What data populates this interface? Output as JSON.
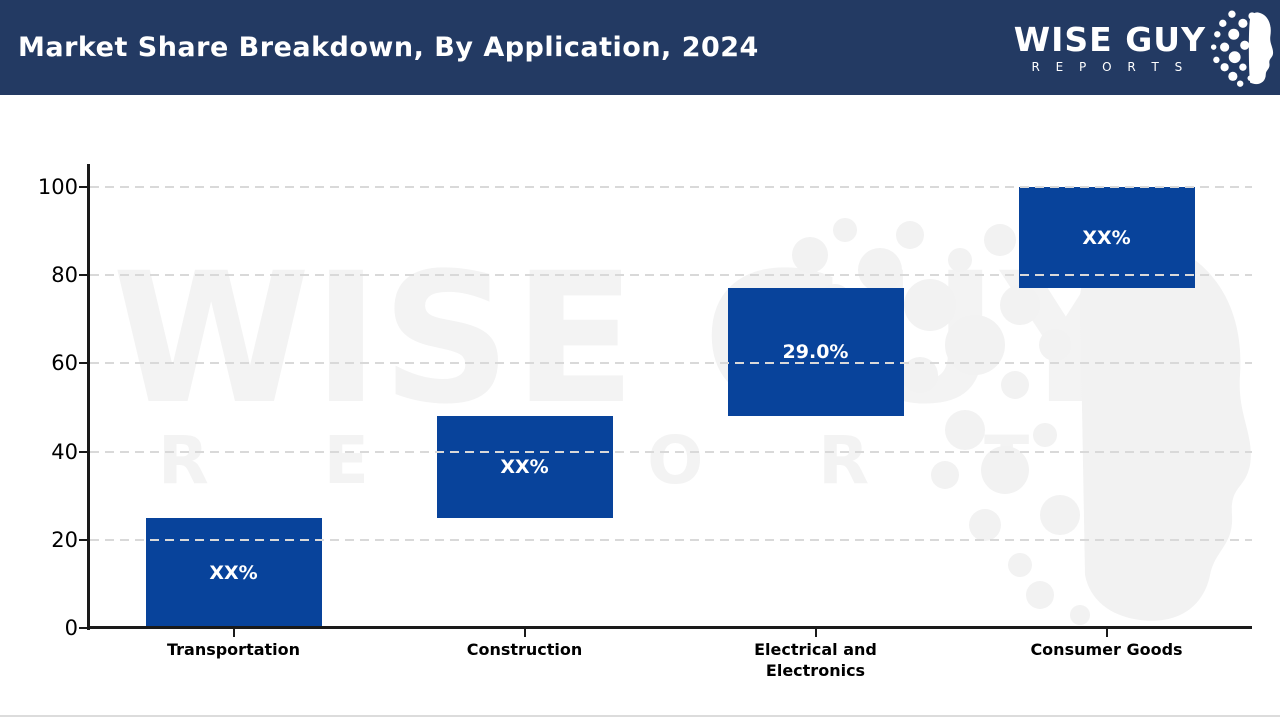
{
  "header": {
    "title": "Market Share Breakdown, By Application, 2024",
    "logo": {
      "name": "WISE GUY",
      "subtitle": "R E P O R T S"
    }
  },
  "watermark": {
    "line1": "WISE GUY",
    "line2": "R E P O R T S"
  },
  "icons": {
    "logo_face": "dotted-head-profile-icon",
    "watermark_face": "dotted-head-profile-watermark"
  },
  "colors": {
    "header_bg": "#233a63",
    "bar": "#08439b",
    "axis": "#1a1a1a",
    "gridline": "#d9d9d9",
    "bar_label": "#ffffff",
    "watermark": "#f3f3f3"
  },
  "chart_data": {
    "type": "bar",
    "subtype": "waterfall",
    "title": "Market Share Breakdown, By Application, 2024",
    "xlabel": "",
    "ylabel": "",
    "categories": [
      "Transportation",
      "Construction",
      "Electrical and Electronics",
      "Consumer Goods"
    ],
    "series": [
      {
        "name": "Market share (%)",
        "segments": [
          {
            "category": "Transportation",
            "start": 0,
            "end": 25,
            "label": "XX%"
          },
          {
            "category": "Construction",
            "start": 25,
            "end": 48,
            "label": "XX%"
          },
          {
            "category": "Electrical and Electronics",
            "start": 48,
            "end": 77,
            "label": "29.0%"
          },
          {
            "category": "Consumer Goods",
            "start": 77,
            "end": 100,
            "label": "XX%"
          }
        ]
      }
    ],
    "ylim": [
      0,
      100
    ],
    "yticks": [
      0,
      20,
      40,
      60,
      80,
      100
    ],
    "grid": "horizontal-dashed",
    "legend": "none"
  }
}
